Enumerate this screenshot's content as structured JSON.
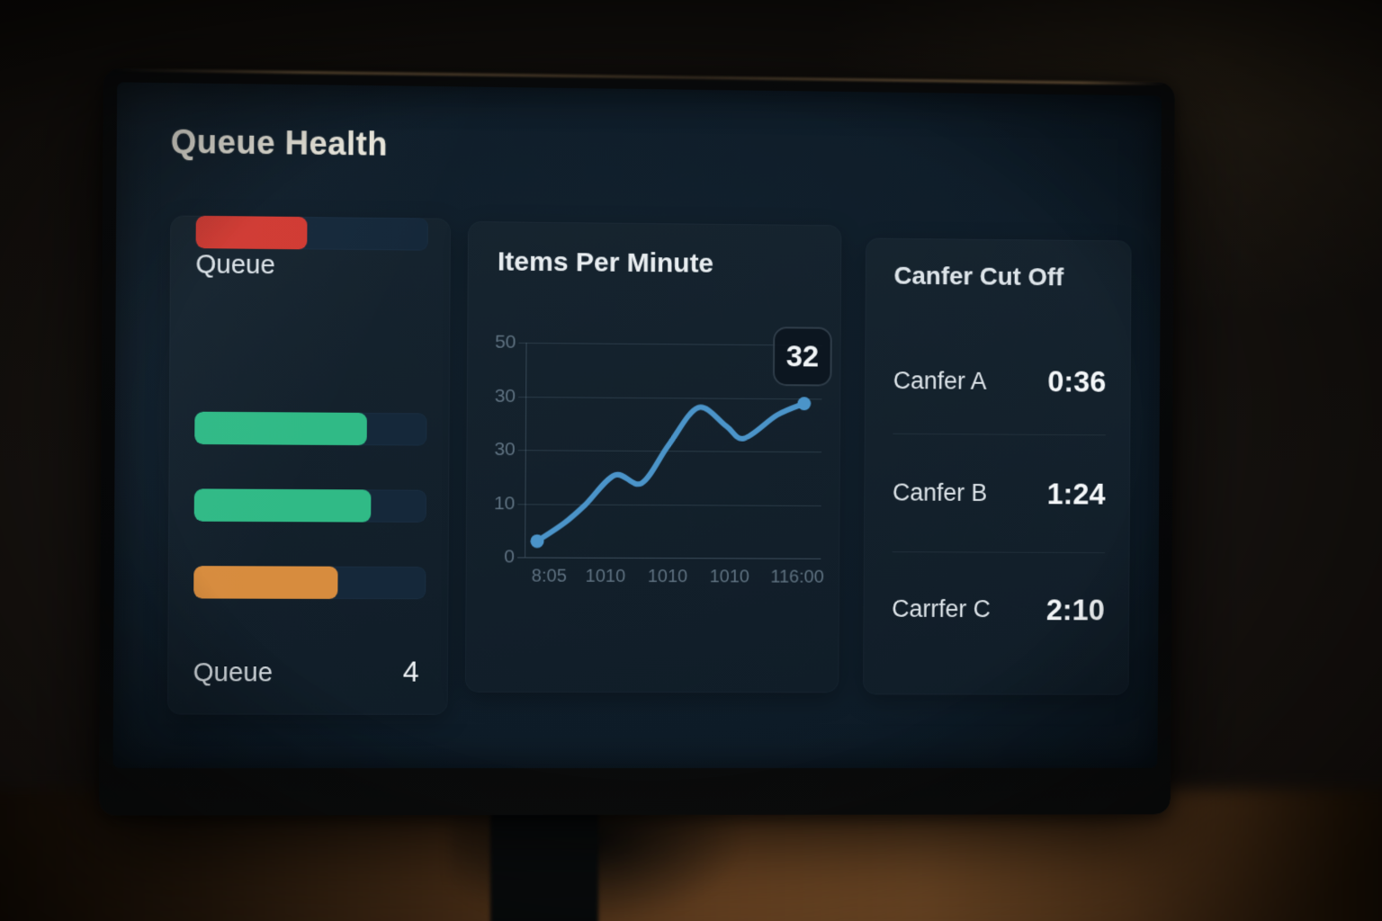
{
  "app": {
    "title": "Queue Health"
  },
  "queue_card": {
    "title": "Queue",
    "bars": [
      {
        "name": "queue-bar-1",
        "status": "green",
        "color": "#30ba86",
        "fill_pct": 74
      },
      {
        "name": "queue-bar-2",
        "status": "green",
        "color": "#30ba86",
        "fill_pct": 76
      },
      {
        "name": "queue-bar-3",
        "status": "orange",
        "color": "#d78c3e",
        "fill_pct": 62
      },
      {
        "name": "queue-bar-4",
        "status": "red",
        "color": "#d13a32",
        "fill_pct": 48
      }
    ],
    "footer": {
      "label": "Queue",
      "value": "4"
    }
  },
  "ipm_card": {
    "title": "Items Per Minute",
    "badge_value": "32"
  },
  "cutoff_card": {
    "title": "Canfer Cut Off",
    "rows": [
      {
        "label": "Canfer A",
        "value": "0:36"
      },
      {
        "label": "Canfer B",
        "value": "1:24"
      },
      {
        "label": "Carrfer C",
        "value": "2:10"
      }
    ]
  },
  "chart_data": {
    "type": "line",
    "title": "Items Per Minute",
    "current_value_badge": "32",
    "yticks": [
      "50",
      "30",
      "30",
      "10",
      "0"
    ],
    "xticks": [
      "8:05",
      "1010",
      "1010",
      "1010",
      "116:00"
    ],
    "xtick_pos_pct": [
      8,
      27,
      48,
      69,
      92
    ],
    "ylim": [
      0,
      50
    ],
    "grid": true,
    "legend": "none",
    "line_color": "#4b94c9",
    "unit_max": 40,
    "points": [
      [
        0.039,
        3.0
      ],
      [
        0.13,
        6.4
      ],
      [
        0.2,
        9.8
      ],
      [
        0.3,
        15.4
      ],
      [
        0.39,
        13.9
      ],
      [
        0.48,
        21.0
      ],
      [
        0.58,
        28.1
      ],
      [
        0.675,
        24.7
      ],
      [
        0.736,
        22.4
      ],
      [
        0.848,
        26.8
      ],
      [
        0.94,
        29.0
      ]
    ]
  },
  "colors": {
    "green": "#30ba86",
    "orange": "#d78c3e",
    "red": "#d13a32",
    "accent_blue": "#4b94c9",
    "card_bg": "#14222d",
    "screen_bg": "#0e1c28"
  }
}
